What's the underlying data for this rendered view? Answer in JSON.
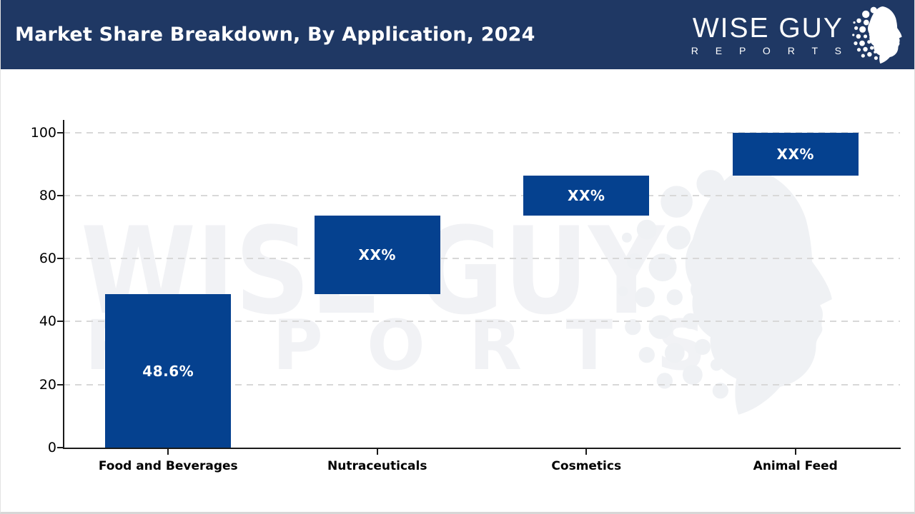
{
  "header": {
    "title": "Market Share Breakdown, By Application, 2024",
    "bg_color": "#1f3864",
    "logo": {
      "line1": "WISE GUY",
      "line2": "R E P O R T S"
    }
  },
  "watermark": {
    "line1": "WISE GUY",
    "line2": "R E P O R T S"
  },
  "chart_data": {
    "type": "bar",
    "subtype": "waterfall",
    "title": "Market Share Breakdown, By Application, 2024",
    "categories": [
      "Food and Beverages",
      "Nutraceuticals",
      "Cosmetics",
      "Animal Feed"
    ],
    "segments": [
      {
        "category": "Food and Beverages",
        "start": 0,
        "end": 48.6,
        "label": "48.6%"
      },
      {
        "category": "Nutraceuticals",
        "start": 48.6,
        "end": 73.7,
        "label": "XX%"
      },
      {
        "category": "Cosmetics",
        "start": 73.7,
        "end": 86.4,
        "label": "XX%"
      },
      {
        "category": "Animal Feed",
        "start": 86.4,
        "end": 100,
        "label": "XX%"
      }
    ],
    "xlabel": "",
    "ylabel": "",
    "ylim": [
      0,
      100
    ],
    "yticks": [
      0,
      20,
      40,
      60,
      80,
      100
    ],
    "grid": "horizontal-dashed",
    "legend": "none",
    "bar_color": "#05418f",
    "bar_label_color": "#ffffff",
    "axis_color": "#1a1a1a",
    "gridline_color": "#d8d8d8"
  }
}
